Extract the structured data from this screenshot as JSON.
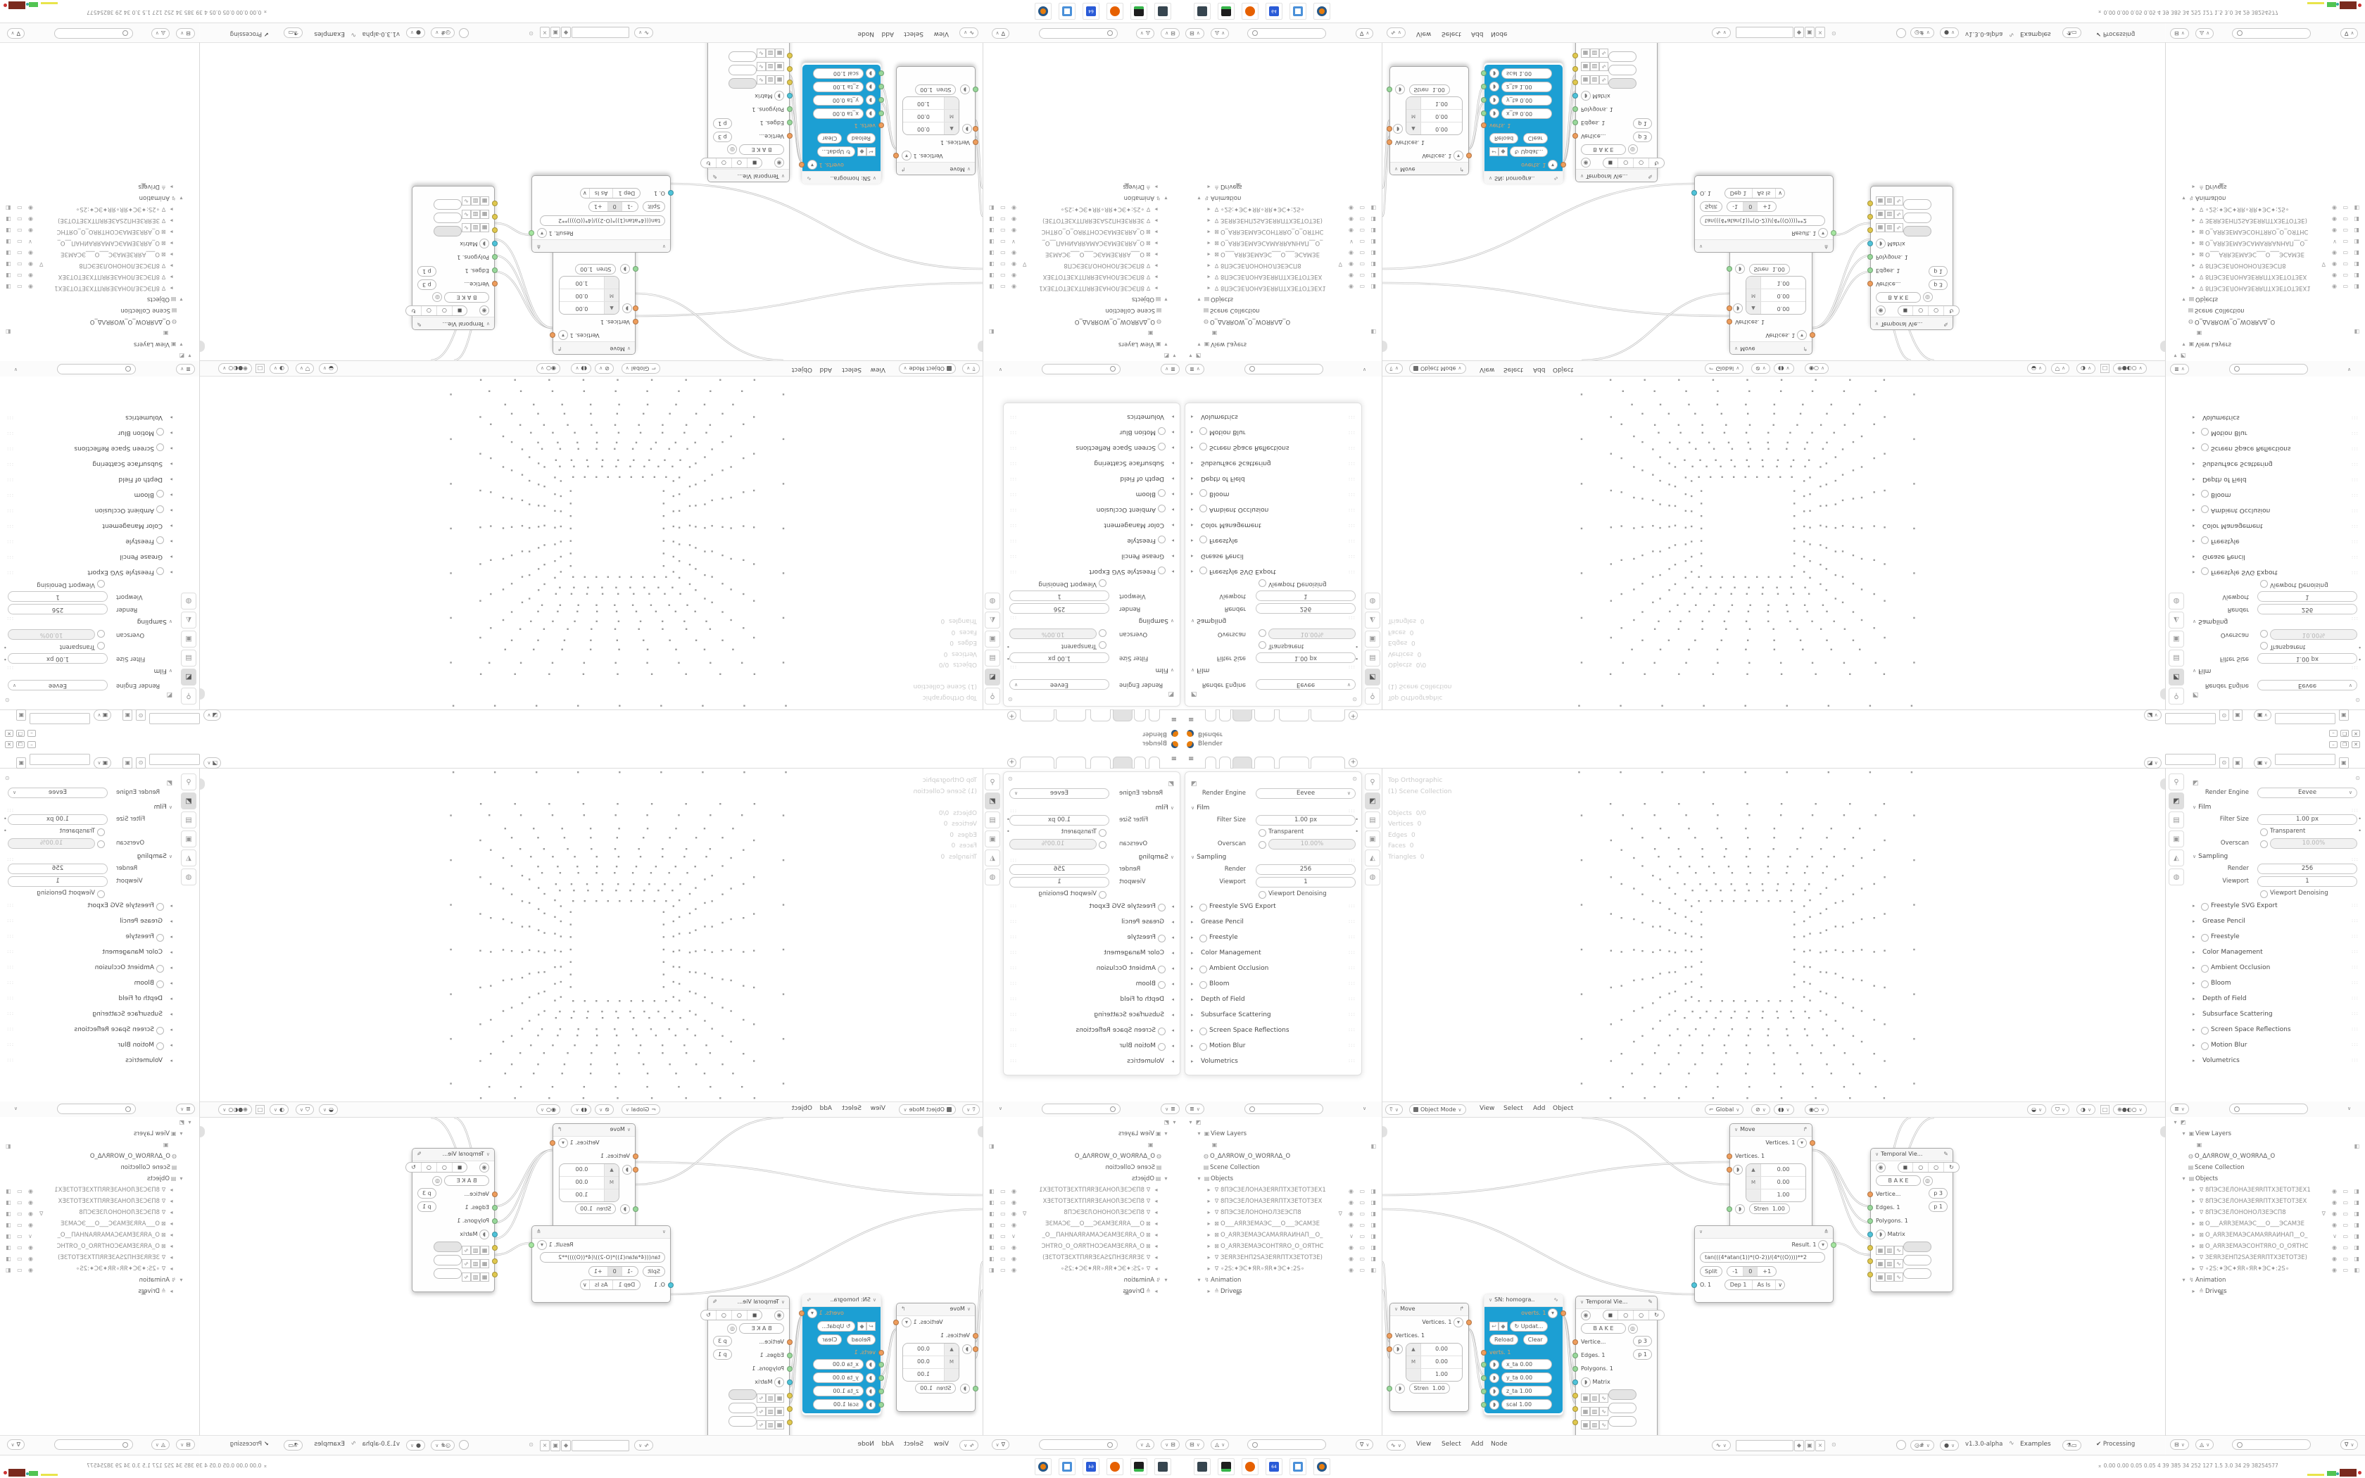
{
  "window": {
    "title": "Blender",
    "minimize": "–",
    "maximize": "❐",
    "close": "✕"
  },
  "topbar": {
    "tabs": [
      "",
      "",
      "",
      "",
      "",
      ""
    ],
    "active_tab_index": 2,
    "new_tab": "+"
  },
  "props": {
    "engine_label": "Render Engine",
    "engine_value": "Eevee",
    "rows": [
      {
        "t": "sec",
        "label": "Film"
      },
      {
        "t": "num",
        "label": "Filter Size",
        "value": "1.00 px",
        "dot": true
      },
      {
        "t": "chk",
        "label": "Transparent",
        "dot": true
      },
      {
        "t": "numchk",
        "label": "Overscan",
        "value": "10.00%",
        "disabled": true
      },
      {
        "t": "sec",
        "label": "Sampling"
      },
      {
        "t": "num",
        "label": "Render",
        "value": "256"
      },
      {
        "t": "num",
        "label": "Viewport",
        "value": "1"
      },
      {
        "t": "chk2",
        "label": "Viewport Denoising"
      },
      {
        "t": "col",
        "label": "Freestyle SVG Export",
        "chk": true
      },
      {
        "t": "col",
        "label": "Grease Pencil"
      },
      {
        "t": "col",
        "label": "Freestyle",
        "chk": true
      },
      {
        "t": "col",
        "label": "Color Management"
      },
      {
        "t": "col",
        "label": "Ambient Occlusion",
        "chk": true
      },
      {
        "t": "col",
        "label": "Bloom",
        "chk": true
      },
      {
        "t": "col",
        "label": "Depth of Field"
      },
      {
        "t": "col",
        "label": "Subsurface Scattering"
      },
      {
        "t": "col",
        "label": "Screen Space Reflections",
        "chk": true
      },
      {
        "t": "col",
        "label": "Motion Blur",
        "chk": true
      },
      {
        "t": "col",
        "label": "Volumetrics"
      }
    ]
  },
  "viewport": {
    "stats": [
      "Top Orthographic",
      "(1) Scene Collection",
      "Objects  0/0",
      "Vertices  0",
      "Edges  0",
      "Faces  0",
      "Triangles  0"
    ],
    "header": {
      "mode": "Object Mode",
      "menus": [
        "View",
        "Select",
        "Add",
        "Object"
      ],
      "orientation": "Global"
    }
  },
  "outliner": {
    "view_layers": "View Layers",
    "scene_name": "O_ΔΛЯROW_O_WOЯRΛΔ_O",
    "scene_collection": "Scene Collection",
    "objects_label": "Objects",
    "animation": "Animation",
    "drivers": "Drivers",
    "items": [
      {
        "name": "8ПЭСЗЕЛОНАЗЕЯRПТХЗЕТОТЗЕХ1",
        "type": "mesh"
      },
      {
        "name": "8ПЭСЗЕЛОНАЗЕЯRПТХЗЕТОТЗЕХ",
        "type": "mesh"
      },
      {
        "name": "8ПЭСЗЕЛОНОНОЛЗЕЭСП8",
        "type": "mesh",
        "extra": "mesh"
      },
      {
        "name": "O___АЯRЗЕМАЭС___O___ЭСАМЗЕ",
        "type": "camera"
      },
      {
        "name": "O_АЯRЗЕМАЭСАМАЯRАИНАП__O_",
        "type": "camera",
        "chev": true
      },
      {
        "name": "O_АЯRЗЕМАЭСОНТЯRО_O_ОЯТНС",
        "type": "camera"
      },
      {
        "name": "ЗЕЯRЗЕНП2SАЗЕЯRПТХЗЕТОТЗЕ)",
        "type": "mesh"
      },
      {
        "name": "∘2S:✦ЭС✦ЯR∘ЯR✦ЭС✦:2S∘",
        "type": "mesh",
        "render_on": true
      }
    ]
  },
  "node_editor": {
    "menus": [
      "View",
      "Select",
      "Add",
      "Node"
    ],
    "version": "v1.3.0-alpha",
    "examples": "Examples",
    "processing": "Processing",
    "nodes": {
      "move": {
        "title": "Move",
        "output": "Vertices. 1",
        "input": "Vertices. 1",
        "rows": [
          {
            "prefix": "▲",
            "value": "0.00"
          },
          {
            "prefix": "M",
            "value": "0.00"
          },
          {
            "prefix": "",
            "value": "1.00"
          }
        ],
        "stren_label": "Stren",
        "stren_value": "1.00"
      },
      "sn": {
        "title": "SN: homogra..",
        "output": "overts. 1",
        "update": "Updat...",
        "reload": "Reload",
        "clear": "Clear",
        "verts": "verts. 1",
        "fields": [
          {
            "label": "x_ta",
            "value": "0.00"
          },
          {
            "label": "y_ta",
            "value": "0.00"
          },
          {
            "label": "z_ta",
            "value": "1.00"
          },
          {
            "label": "scal",
            "value": "1.00"
          }
        ]
      },
      "viewer": {
        "title": "Temporal Vie...",
        "bake": "B A K E",
        "vertices_label": "Vertice...",
        "vertices_badge": "p  3",
        "edges_label": "Edges. 1",
        "edges_badge": "p  1",
        "polygons_label": "Polygons. 1",
        "matrix_label": "Matrix"
      },
      "formula": {
        "result": "Result. 1",
        "formula": "tan(((4*atan(1))*(O-2))/(4*((O))))**2",
        "split": "Split",
        "options": [
          "-1",
          "0",
          "+1"
        ],
        "o_label": "O. 1",
        "dep": "Dep 1",
        "as_is": "As Is"
      }
    }
  },
  "taskbar": {
    "apps": [
      "screen-tool",
      "package-tool",
      "firefox",
      "save-64",
      "image-viewer",
      "blender"
    ],
    "save_label": "64",
    "tray_stats": "0.00 0.00 0.05 0.05   4    39   385   34   252  127   1.5   3.0   34    29  38254577"
  },
  "colors": {
    "accent_blue": "#1c9fd3",
    "socket_orange": "#ee9d5c",
    "socket_green": "#98d89a",
    "socket_cyan": "#4fc3d9",
    "socket_yellow": "#e0c84e",
    "blender_orange": "#e87d0d",
    "tray_yellow": "#e8e44a",
    "tray_green": "#52c452",
    "tray_red": "#7a2a1e"
  }
}
